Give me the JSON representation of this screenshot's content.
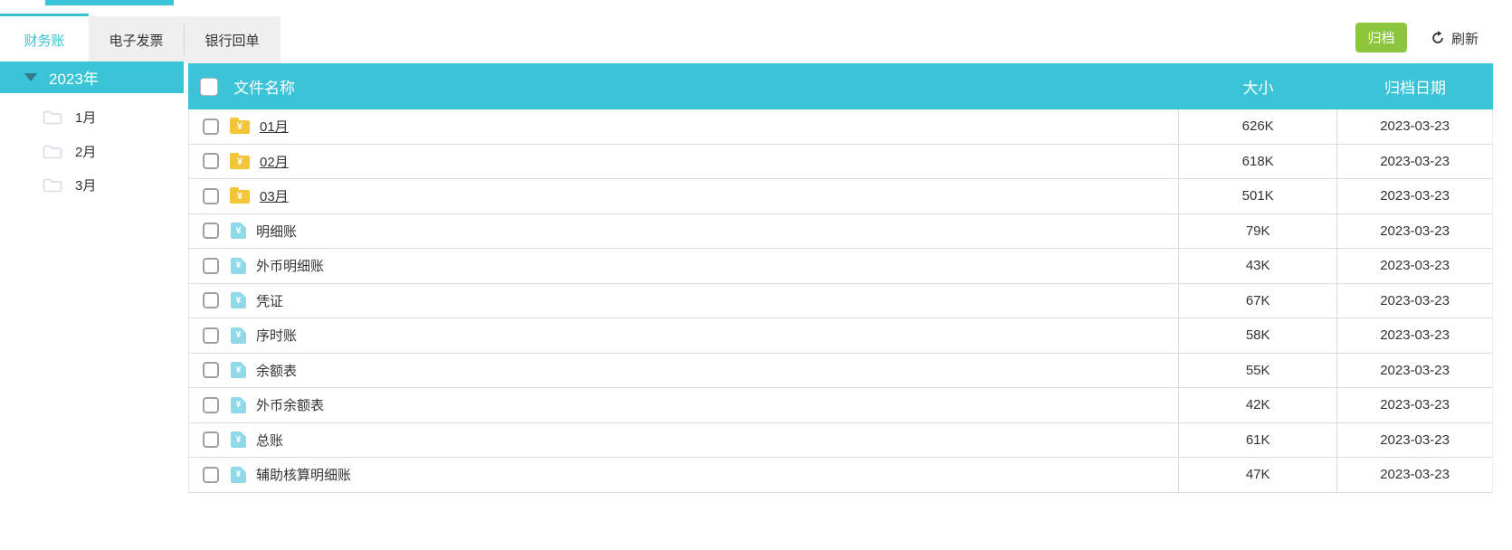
{
  "tabs": [
    {
      "label": "财务账",
      "active": true
    },
    {
      "label": "电子发票",
      "active": false
    },
    {
      "label": "银行回单",
      "active": false
    }
  ],
  "toolbar": {
    "archive_button": "归档",
    "refresh_label": "刷新",
    "refresh_icon": "refresh-icon"
  },
  "sidebar": {
    "year_label": "2023年",
    "year_expanded": true,
    "collapse_icon": "triangle-down-icon",
    "months": [
      {
        "label": "1月",
        "icon": "folder-outline-icon"
      },
      {
        "label": "2月",
        "icon": "folder-outline-icon"
      },
      {
        "label": "3月",
        "icon": "folder-outline-icon"
      }
    ]
  },
  "table": {
    "select_all_checked": false,
    "headers": {
      "name": "文件名称",
      "size": "大小",
      "date": "归档日期"
    },
    "rows": [
      {
        "type": "folder",
        "icon": "folder-yen-icon",
        "name": "01月",
        "size": "626K",
        "date": "2023-03-23",
        "checked": false
      },
      {
        "type": "folder",
        "icon": "folder-yen-icon",
        "name": "02月",
        "size": "618K",
        "date": "2023-03-23",
        "checked": false
      },
      {
        "type": "folder",
        "icon": "folder-yen-icon",
        "name": "03月",
        "size": "501K",
        "date": "2023-03-23",
        "checked": false
      },
      {
        "type": "file",
        "icon": "file-yen-icon",
        "name": "明细账",
        "size": "79K",
        "date": "2023-03-23",
        "checked": false
      },
      {
        "type": "file",
        "icon": "file-yen-icon",
        "name": "外币明细账",
        "size": "43K",
        "date": "2023-03-23",
        "checked": false
      },
      {
        "type": "file",
        "icon": "file-yen-icon",
        "name": "凭证",
        "size": "67K",
        "date": "2023-03-23",
        "checked": false
      },
      {
        "type": "file",
        "icon": "file-yen-icon",
        "name": "序时账",
        "size": "58K",
        "date": "2023-03-23",
        "checked": false
      },
      {
        "type": "file",
        "icon": "file-yen-icon",
        "name": "余额表",
        "size": "55K",
        "date": "2023-03-23",
        "checked": false
      },
      {
        "type": "file",
        "icon": "file-yen-icon",
        "name": "外币余额表",
        "size": "42K",
        "date": "2023-03-23",
        "checked": false
      },
      {
        "type": "file",
        "icon": "file-yen-icon",
        "name": "总账",
        "size": "61K",
        "date": "2023-03-23",
        "checked": false
      },
      {
        "type": "file",
        "icon": "file-yen-icon",
        "name": "辅助核算明细账",
        "size": "47K",
        "date": "2023-03-23",
        "checked": false
      }
    ]
  },
  "icon_glyphs": {
    "yen": "¥"
  },
  "colors": {
    "teal_accent": "#3bc3d7",
    "active_tab_text": "#3bc0d3",
    "archive_green": "#8CC63F",
    "row_border": "#dcdcdc",
    "folder_yellow": "#F3C53A",
    "file_blue": "#8FD9E9",
    "inactive_tab_bg": "#efefef"
  }
}
